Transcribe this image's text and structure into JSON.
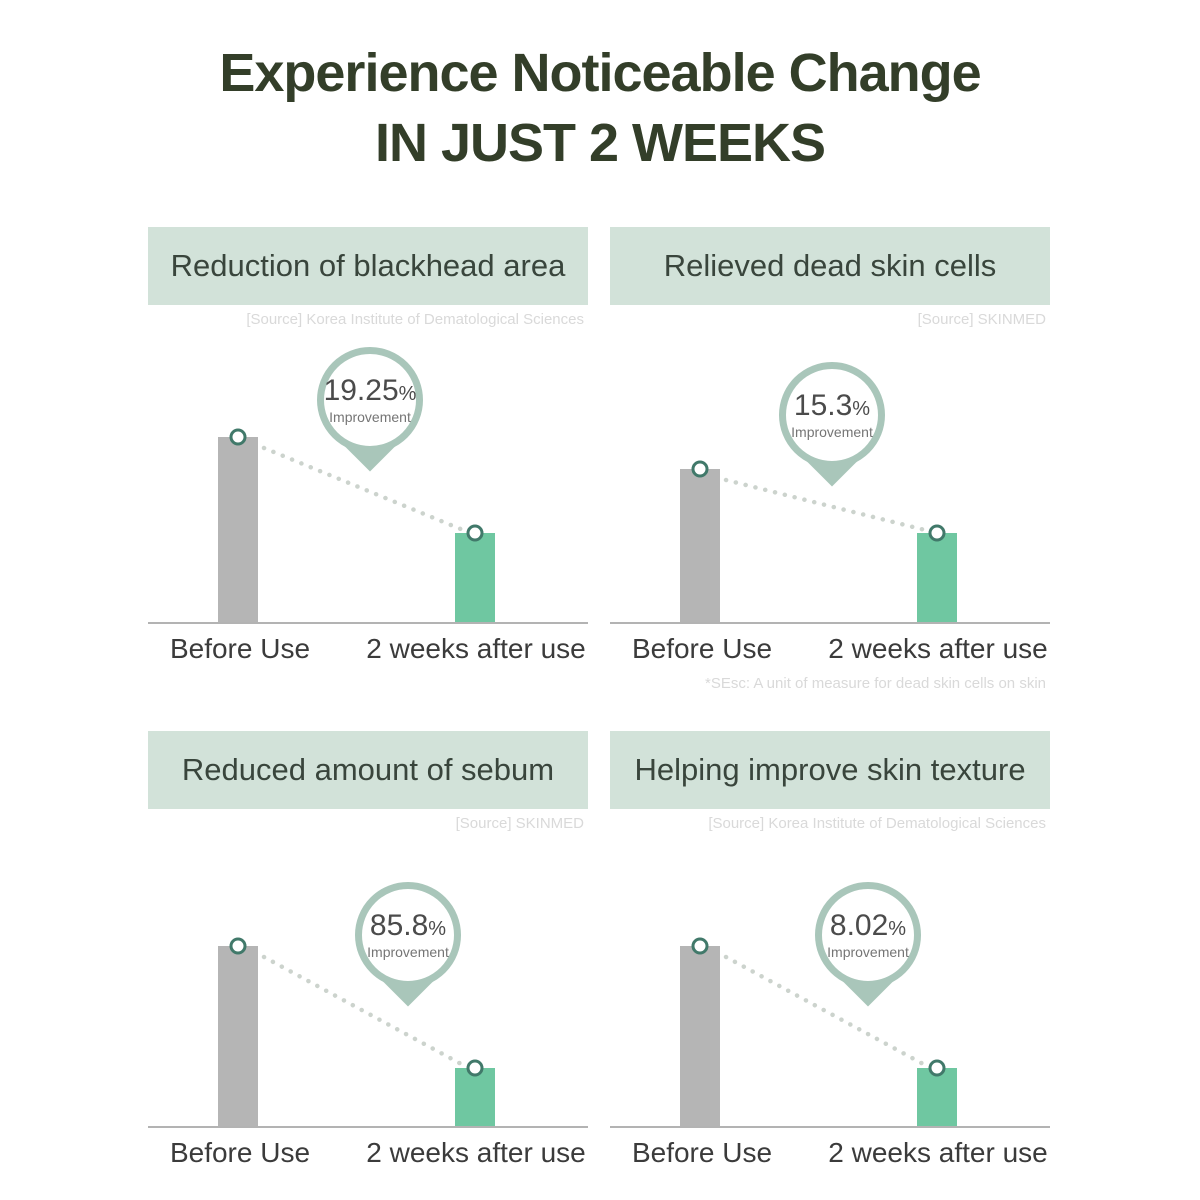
{
  "title": {
    "line1": "Experience Noticeable Change",
    "line2": "IN JUST 2 WEEKS"
  },
  "shared": {
    "improvement_label": "Improvement",
    "percent_sign": "%"
  },
  "colors": {
    "title_text": "#333e29",
    "banner_bg": "#d2e2d9",
    "banner_text": "#39453c",
    "source_text": "#d9d9d9",
    "bar_before": "#b5b5b5",
    "bar_after": "#6fc7a1",
    "axis": "#b3b3b3",
    "dots": "#ccd3cd",
    "marker": "#41796a",
    "pin": "#a9c6ba",
    "percent_text": "#4b4b4b",
    "improvement_text": "#757575",
    "label_text": "#3b3b3b"
  },
  "chart_data": [
    {
      "type": "bar",
      "title": "Reduction of blackhead area",
      "source": "[Source] Korea Institute of Dematological Sciences",
      "categories": [
        "Before Use",
        "2 weeks after use"
      ],
      "values": [
        100,
        48
      ],
      "improvement": "19.25",
      "legend": "none",
      "grid": "off"
    },
    {
      "type": "bar",
      "title": "Relieved dead skin cells",
      "source": "[Source] SKINMED",
      "categories": [
        "Before Use",
        "2 weeks after use"
      ],
      "values": [
        100,
        58
      ],
      "improvement": "15.3",
      "footnote": "*SEsc: A unit of measure for dead skin cells on skin",
      "legend": "none",
      "grid": "off"
    },
    {
      "type": "bar",
      "title": "Reduced amount of sebum",
      "source": "[Source] SKINMED",
      "categories": [
        "Before Use",
        "2 weeks after use"
      ],
      "values": [
        100,
        32
      ],
      "improvement": "85.8",
      "legend": "none",
      "grid": "off"
    },
    {
      "type": "bar",
      "title": "Helping improve skin texture",
      "source": "[Source] Korea Institute of Dematological Sciences",
      "categories": [
        "Before Use",
        "2 weeks after use"
      ],
      "values": [
        100,
        32
      ],
      "improvement": "8.02",
      "legend": "none",
      "grid": "off"
    }
  ]
}
